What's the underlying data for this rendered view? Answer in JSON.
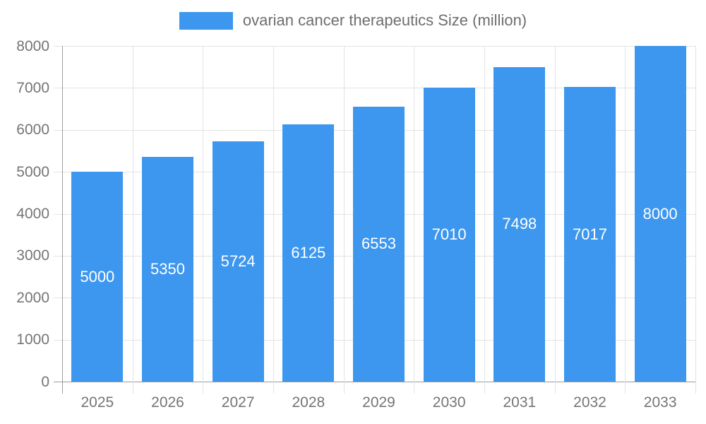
{
  "chart_data": {
    "type": "bar",
    "title": "",
    "legend": {
      "label": "ovarian cancer therapeutics Size (million)",
      "position": "top-center"
    },
    "categories": [
      "2025",
      "2026",
      "2027",
      "2028",
      "2029",
      "2030",
      "2031",
      "2032",
      "2033"
    ],
    "series": [
      {
        "name": "ovarian cancer therapeutics Size (million)",
        "values": [
          5000,
          5350,
          5724,
          6125,
          6553,
          7010,
          7498,
          7017,
          8000
        ]
      }
    ],
    "value_labels": [
      "5000",
      "5350",
      "5724",
      "6125",
      "6553",
      "7010",
      "7498",
      "7017",
      "8000"
    ],
    "xlabel": "",
    "ylabel": "",
    "ylim": [
      0,
      8000
    ],
    "yticks": [
      0,
      1000,
      2000,
      3000,
      4000,
      5000,
      6000,
      7000,
      8000
    ],
    "grid": true,
    "colors": {
      "bar": "#3D97EE",
      "grid": "#e3e3e3",
      "axis_line": "#9a9a9a",
      "tick_text": "#757575",
      "legend_text": "#6e6e6e",
      "value_label_text": "#ffffff",
      "background": "#ffffff"
    }
  }
}
